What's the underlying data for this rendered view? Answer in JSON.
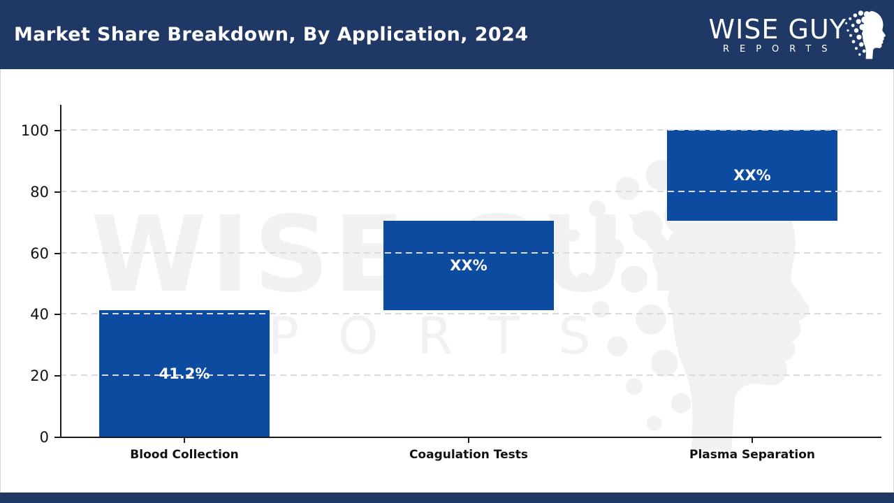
{
  "header": {
    "title": "Market Share Breakdown, By Application, 2024",
    "logo": {
      "primary": "WISE GUY",
      "secondary": "REPORTS",
      "face_icon": "dotted-face-profile"
    }
  },
  "watermark": {
    "primary": "WISE GUY",
    "secondary": "REPORTS",
    "face_icon": "dotted-face-profile"
  },
  "chart_data": {
    "type": "bar",
    "subtype": "floating-waterfall",
    "title": "Market Share Breakdown, By Application, 2024",
    "categories": [
      "Blood Collection",
      "Coagulation Tests",
      "Plasma Separation"
    ],
    "bars": [
      {
        "category": "Blood Collection",
        "start": 0,
        "end": 41.2,
        "label": "41.2%"
      },
      {
        "category": "Coagulation Tests",
        "start": 41.2,
        "end": 70.4,
        "label": "XX%"
      },
      {
        "category": "Plasma Separation",
        "start": 70.4,
        "end": 100,
        "label": "XX%"
      }
    ],
    "yticks": [
      0,
      20,
      40,
      60,
      80,
      100
    ],
    "ylim": [
      0,
      108
    ],
    "grid": "horizontal-dashed",
    "legend": "none",
    "bar_color": "#0C4BA0",
    "bar_label_color": "#FFFFFF"
  },
  "colors": {
    "header_bg": "#1F3866",
    "footer_bg": "#1F3866",
    "grid": "#DADADA",
    "axis": "#1A1A1A",
    "watermark": "#F1F1F1",
    "background": "#FFFFFF"
  }
}
